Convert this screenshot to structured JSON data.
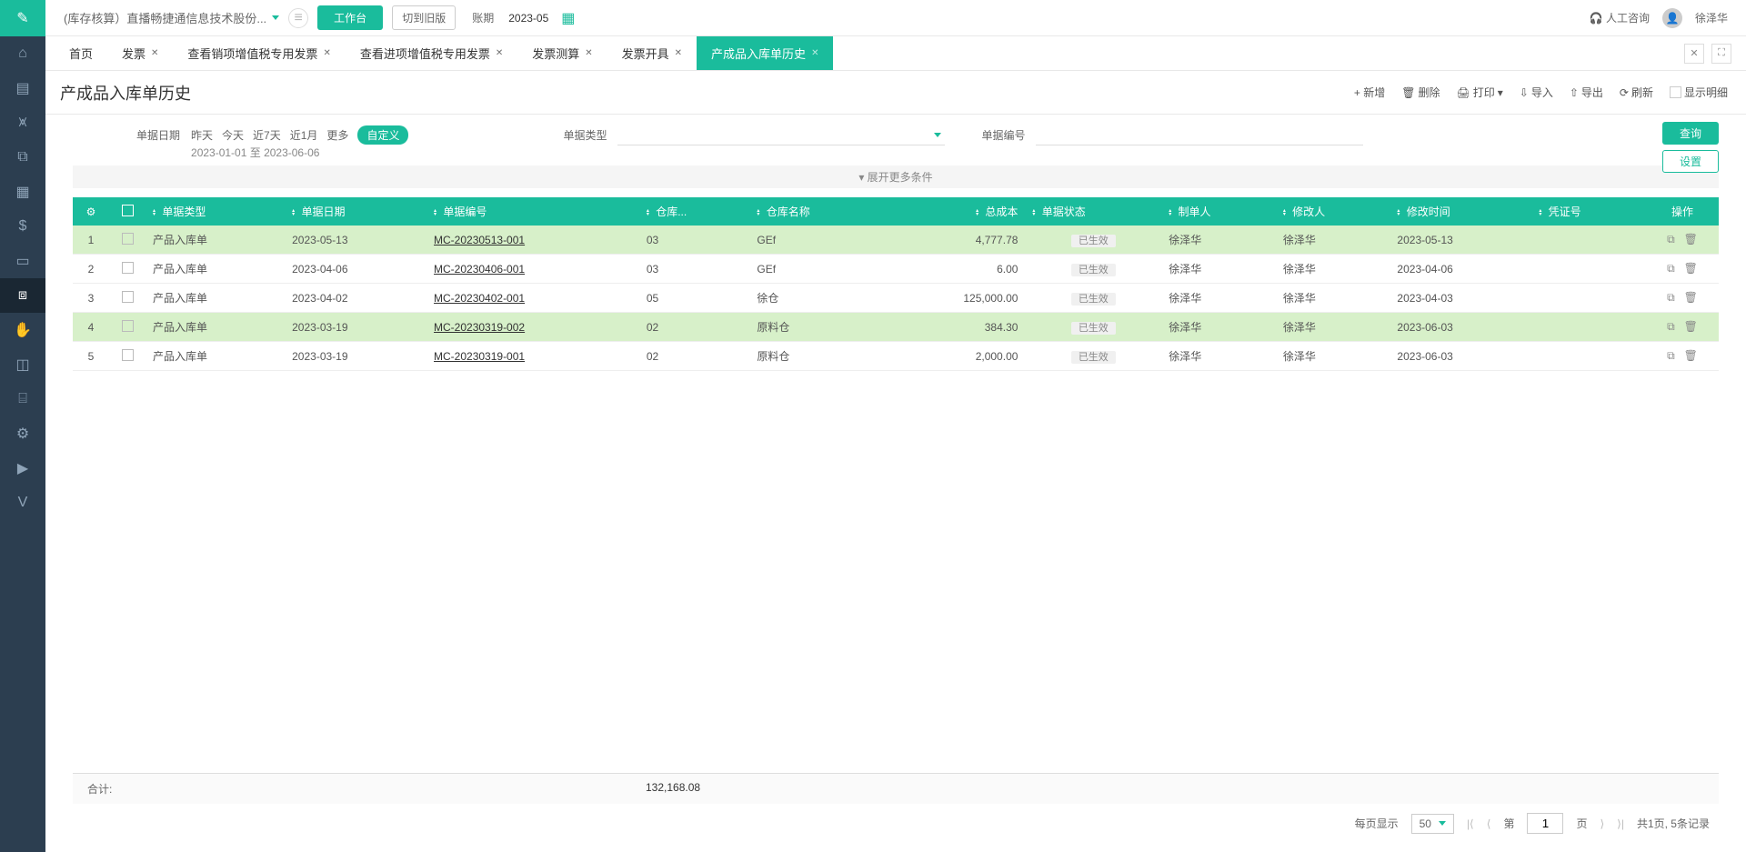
{
  "topbar": {
    "company": "(库存核算）直播畅捷通信息技术股份...",
    "workspace_btn": "工作台",
    "switch_old_btn": "切到旧版",
    "period_label": "账期",
    "period_value": "2023-05",
    "consult": "人工咨询",
    "username": "徐泽华"
  },
  "tabs": [
    {
      "label": "首页",
      "closable": false
    },
    {
      "label": "发票",
      "closable": true
    },
    {
      "label": "查看销项增值税专用发票",
      "closable": true
    },
    {
      "label": "查看进项增值税专用发票",
      "closable": true
    },
    {
      "label": "发票测算",
      "closable": true
    },
    {
      "label": "发票开具",
      "closable": true
    },
    {
      "label": "产成品入库单历史",
      "closable": true,
      "active": true
    }
  ],
  "page": {
    "title": "产成品入库单历史",
    "actions": {
      "add": "+ 新增",
      "delete": "删除",
      "print": "打印",
      "import": "导入",
      "export": "导出",
      "refresh": "刷新",
      "show_detail": "显示明细"
    }
  },
  "filters": {
    "date_label": "单据日期",
    "shortcuts": [
      "昨天",
      "今天",
      "近7天",
      "近1月",
      "更多"
    ],
    "custom_pill": "自定义",
    "date_range": "2023-01-01 至 2023-06-06",
    "type_label": "单据类型",
    "code_label": "单据编号",
    "search_btn": "查询",
    "setting_btn": "设置",
    "expand": "展开更多条件"
  },
  "table": {
    "columns": [
      "",
      "",
      "单据类型",
      "单据日期",
      "单据编号",
      "仓库...",
      "仓库名称",
      "总成本",
      "单据状态",
      "制单人",
      "修改人",
      "修改时间",
      "凭证号",
      "操作"
    ],
    "rows": [
      {
        "idx": "1",
        "type": "产品入库单",
        "date": "2023-05-13",
        "code": "MC-20230513-001",
        "wh": "03",
        "whname": "GEf",
        "cost": "4,777.78",
        "status": "已生效",
        "creator": "徐泽华",
        "modifier": "徐泽华",
        "mtime": "2023-05-13",
        "voucher": "",
        "alt": true
      },
      {
        "idx": "2",
        "type": "产品入库单",
        "date": "2023-04-06",
        "code": "MC-20230406-001",
        "wh": "03",
        "whname": "GEf",
        "cost": "6.00",
        "status": "已生效",
        "creator": "徐泽华",
        "modifier": "徐泽华",
        "mtime": "2023-04-06",
        "voucher": "",
        "alt": false
      },
      {
        "idx": "3",
        "type": "产品入库单",
        "date": "2023-04-02",
        "code": "MC-20230402-001",
        "wh": "05",
        "whname": "徐仓",
        "cost": "125,000.00",
        "status": "已生效",
        "creator": "徐泽华",
        "modifier": "徐泽华",
        "mtime": "2023-04-03",
        "voucher": "",
        "alt": false
      },
      {
        "idx": "4",
        "type": "产品入库单",
        "date": "2023-03-19",
        "code": "MC-20230319-002",
        "wh": "02",
        "whname": "原料仓",
        "cost": "384.30",
        "status": "已生效",
        "creator": "徐泽华",
        "modifier": "徐泽华",
        "mtime": "2023-06-03",
        "voucher": "",
        "alt": true
      },
      {
        "idx": "5",
        "type": "产品入库单",
        "date": "2023-03-19",
        "code": "MC-20230319-001",
        "wh": "02",
        "whname": "原料仓",
        "cost": "2,000.00",
        "status": "已生效",
        "creator": "徐泽华",
        "modifier": "徐泽华",
        "mtime": "2023-06-03",
        "voucher": "",
        "alt": false
      }
    ],
    "total_label": "合计:",
    "total_value": "132,168.08"
  },
  "pagination": {
    "per_page_label": "每页显示",
    "per_page_value": "50",
    "page_prefix": "第",
    "page_value": "1",
    "page_suffix": "页",
    "summary": "共1页, 5条记录"
  }
}
